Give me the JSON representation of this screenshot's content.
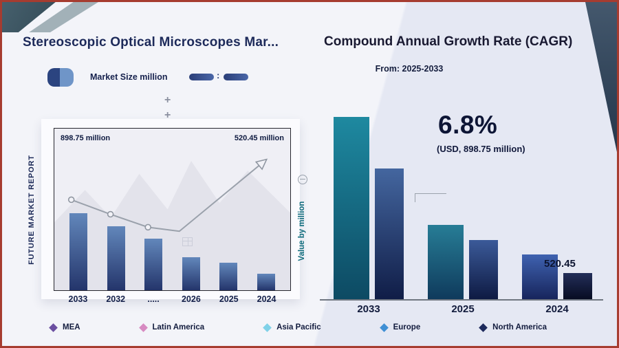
{
  "canvas": {
    "border_color": "#a63c30",
    "background": "#f3f4f9"
  },
  "decor": {
    "plus": "+"
  },
  "chart_data": [
    {
      "type": "bar",
      "title": "Stereoscopic Optical Microscopes  Mar...",
      "legend": "Market Size million",
      "legend_separator": ":",
      "ylabel": "FUTURE MARKET REPORT",
      "annotation_left": "898.75 million",
      "annotation_right": "520.45 million",
      "categories": [
        "2033",
        "2032",
        ".....",
        "2026",
        "2025",
        "2024"
      ],
      "series": [
        {
          "name": "Market Size million",
          "values": [
            898.75,
            745,
            600,
            385,
            320,
            195
          ]
        }
      ],
      "ylim": [
        0,
        898.75
      ],
      "grid": false,
      "bar_color_top": "#6287bb",
      "bar_color_bottom": "#24356b",
      "trend": {
        "type": "line-with-arrow",
        "points_pct": [
          [
            7.2,
            44
          ],
          [
            23.8,
            53
          ],
          [
            39.7,
            61
          ],
          [
            53,
            63.5
          ],
          [
            90,
            19
          ]
        ],
        "marker_count": 3,
        "color": "#9aa1ab"
      }
    },
    {
      "type": "bar",
      "title": "Compound Annual Growth Rate (CAGR)",
      "subtitle": "From: 2025-2033",
      "cagr": "6.8%",
      "cagr_note": "(USD, 898.75 million)",
      "ylabel": "Value by million",
      "categories": [
        "2033",
        "2025",
        "2024"
      ],
      "groups": [
        {
          "year": "2033",
          "bars": [
            {
              "value": 898.75,
              "color_top": "#1e89a0",
              "color_bottom": "#0d4a63"
            },
            {
              "value": 645,
              "color_top": "#44669f",
              "color_bottom": "#101d47"
            }
          ]
        },
        {
          "year": "2025",
          "bars": [
            {
              "value": 365,
              "color_top": "#277d96",
              "color_bottom": "#0f3a5c"
            },
            {
              "value": 290,
              "color_top": "#3b5a99",
              "color_bottom": "#0e1a43"
            }
          ]
        },
        {
          "year": "2024",
          "bars": [
            {
              "value": 220,
              "color_top": "#3f62b0",
              "color_bottom": "#17255c"
            },
            {
              "value": 130,
              "color_top": "#232e59",
              "color_bottom": "#070c22"
            }
          ]
        }
      ],
      "value_label": "520.45",
      "ylim": [
        0,
        898.75
      ],
      "grid": false
    }
  ],
  "footer_legend": {
    "items": [
      {
        "label": "MEA",
        "color": "#6b4fa1"
      },
      {
        "label": "Latin America",
        "color": "#d78ac2"
      },
      {
        "label": "Asia Pacific",
        "color": "#7fd1e8"
      },
      {
        "label": "Europe",
        "color": "#3f8fd4"
      },
      {
        "label": "North America",
        "color": "#1d2a5c"
      }
    ]
  }
}
